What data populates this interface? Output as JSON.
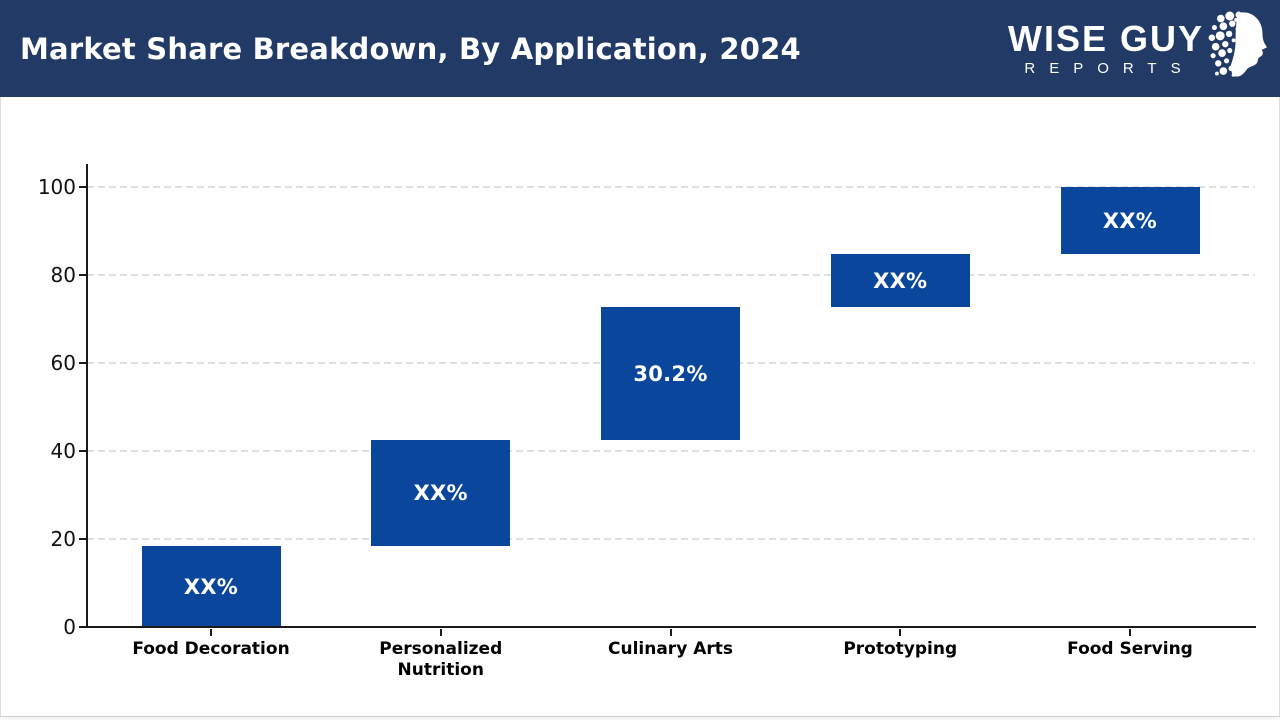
{
  "header": {
    "title": "Market Share Breakdown, By Application, 2024",
    "brand": {
      "line1": "WISE GUY",
      "line2": "REPORTS",
      "icon": "dotted-head-profile-icon"
    }
  },
  "watermark": {
    "line1": "WISE GUY",
    "line2": "REPORTS"
  },
  "chart_data": {
    "type": "bar",
    "subtype": "waterfall",
    "title": "Market Share Breakdown, By Application, 2024",
    "categories": [
      "Food Decoration",
      "Personalized Nutrition",
      "Culinary Arts",
      "Prototyping",
      "Food Serving"
    ],
    "segments": [
      {
        "category": "Food Decoration",
        "start": 0,
        "end": 18.4,
        "label": "XX%"
      },
      {
        "category": "Personalized Nutrition",
        "start": 18.4,
        "end": 42.5,
        "label": "XX%"
      },
      {
        "category": "Culinary Arts",
        "start": 42.5,
        "end": 72.7,
        "label": "30.2%"
      },
      {
        "category": "Prototyping",
        "start": 72.7,
        "end": 84.7,
        "label": "XX%"
      },
      {
        "category": "Food Serving",
        "start": 84.7,
        "end": 100,
        "label": "XX%"
      }
    ],
    "xlabel": "",
    "ylabel": "",
    "ylim": [
      0,
      100
    ],
    "yticks": [
      0,
      20,
      40,
      60,
      80,
      100
    ],
    "grid": "horizontal-dashed",
    "legend": "none",
    "bar_color": "#0a469c",
    "bar_label_color": "#ffffff"
  },
  "colors": {
    "header_bg": "#213a66",
    "bar": "#0a469c",
    "grid": "#e0e0e0",
    "axis": "#1a1a1a",
    "watermark": "#f2f3f5"
  }
}
